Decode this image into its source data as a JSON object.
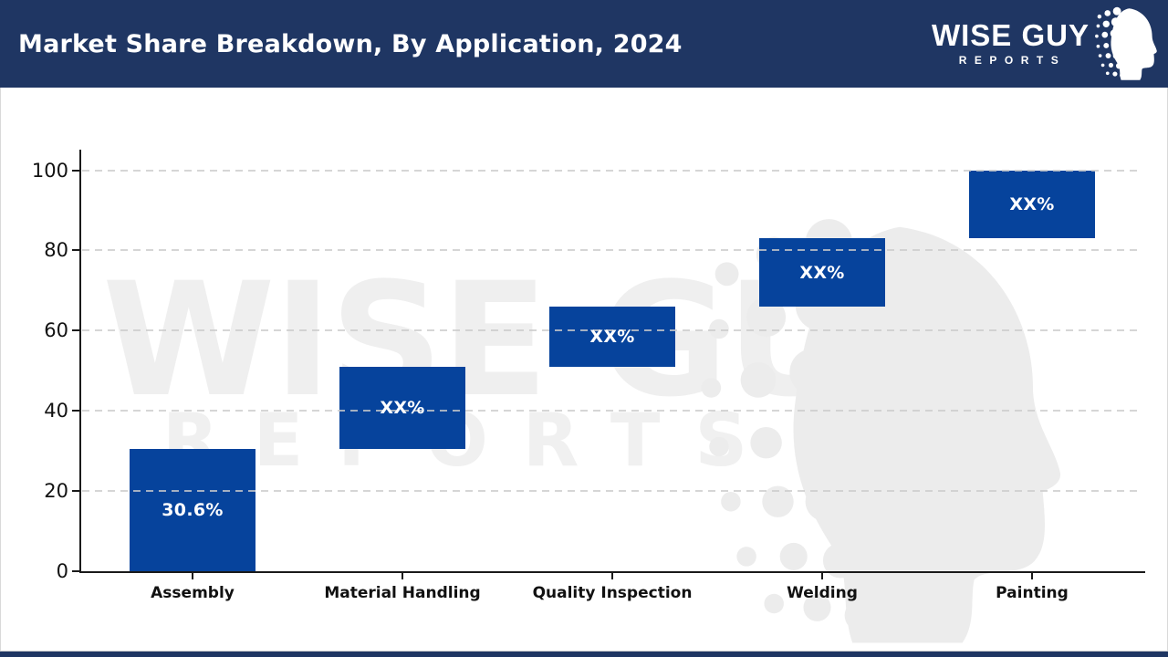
{
  "header": {
    "title": "Market Share Breakdown, By Application, 2024",
    "logo": {
      "line1": "WISE GUY",
      "line2": "REPORTS"
    }
  },
  "watermark": {
    "line1": "WISE GUY",
    "line2": "REPORTS"
  },
  "colors": {
    "header_bg": "#1f3663",
    "bar": "#06439c",
    "grid": "#d9d9d9",
    "axis": "#1a1a1a",
    "bar_label": "#ffffff",
    "watermark": "#efefef"
  },
  "chart_data": {
    "type": "bar",
    "subtype": "waterfall",
    "title": "Market Share Breakdown, By Application, 2024",
    "categories": [
      "Assembly",
      "Material Handling",
      "Quality Inspection",
      "Welding",
      "Painting"
    ],
    "segments": [
      {
        "category": "Assembly",
        "start": 0,
        "end": 30.6,
        "label": "30.6%"
      },
      {
        "category": "Material Handling",
        "start": 30.6,
        "end": 51,
        "label": "XX%"
      },
      {
        "category": "Quality Inspection",
        "start": 51,
        "end": 66,
        "label": "XX%"
      },
      {
        "category": "Welding",
        "start": 66,
        "end": 83,
        "label": "XX%"
      },
      {
        "category": "Painting",
        "start": 83,
        "end": 100,
        "label": "XX%"
      }
    ],
    "y_ticks": [
      0,
      20,
      40,
      60,
      80,
      100
    ],
    "ylim": [
      0,
      105
    ],
    "xlabel": "",
    "ylabel": "",
    "grid": "horizontal dashed",
    "legend": "none",
    "bar_color": "#06439c",
    "value_label_color": "#ffffff"
  }
}
